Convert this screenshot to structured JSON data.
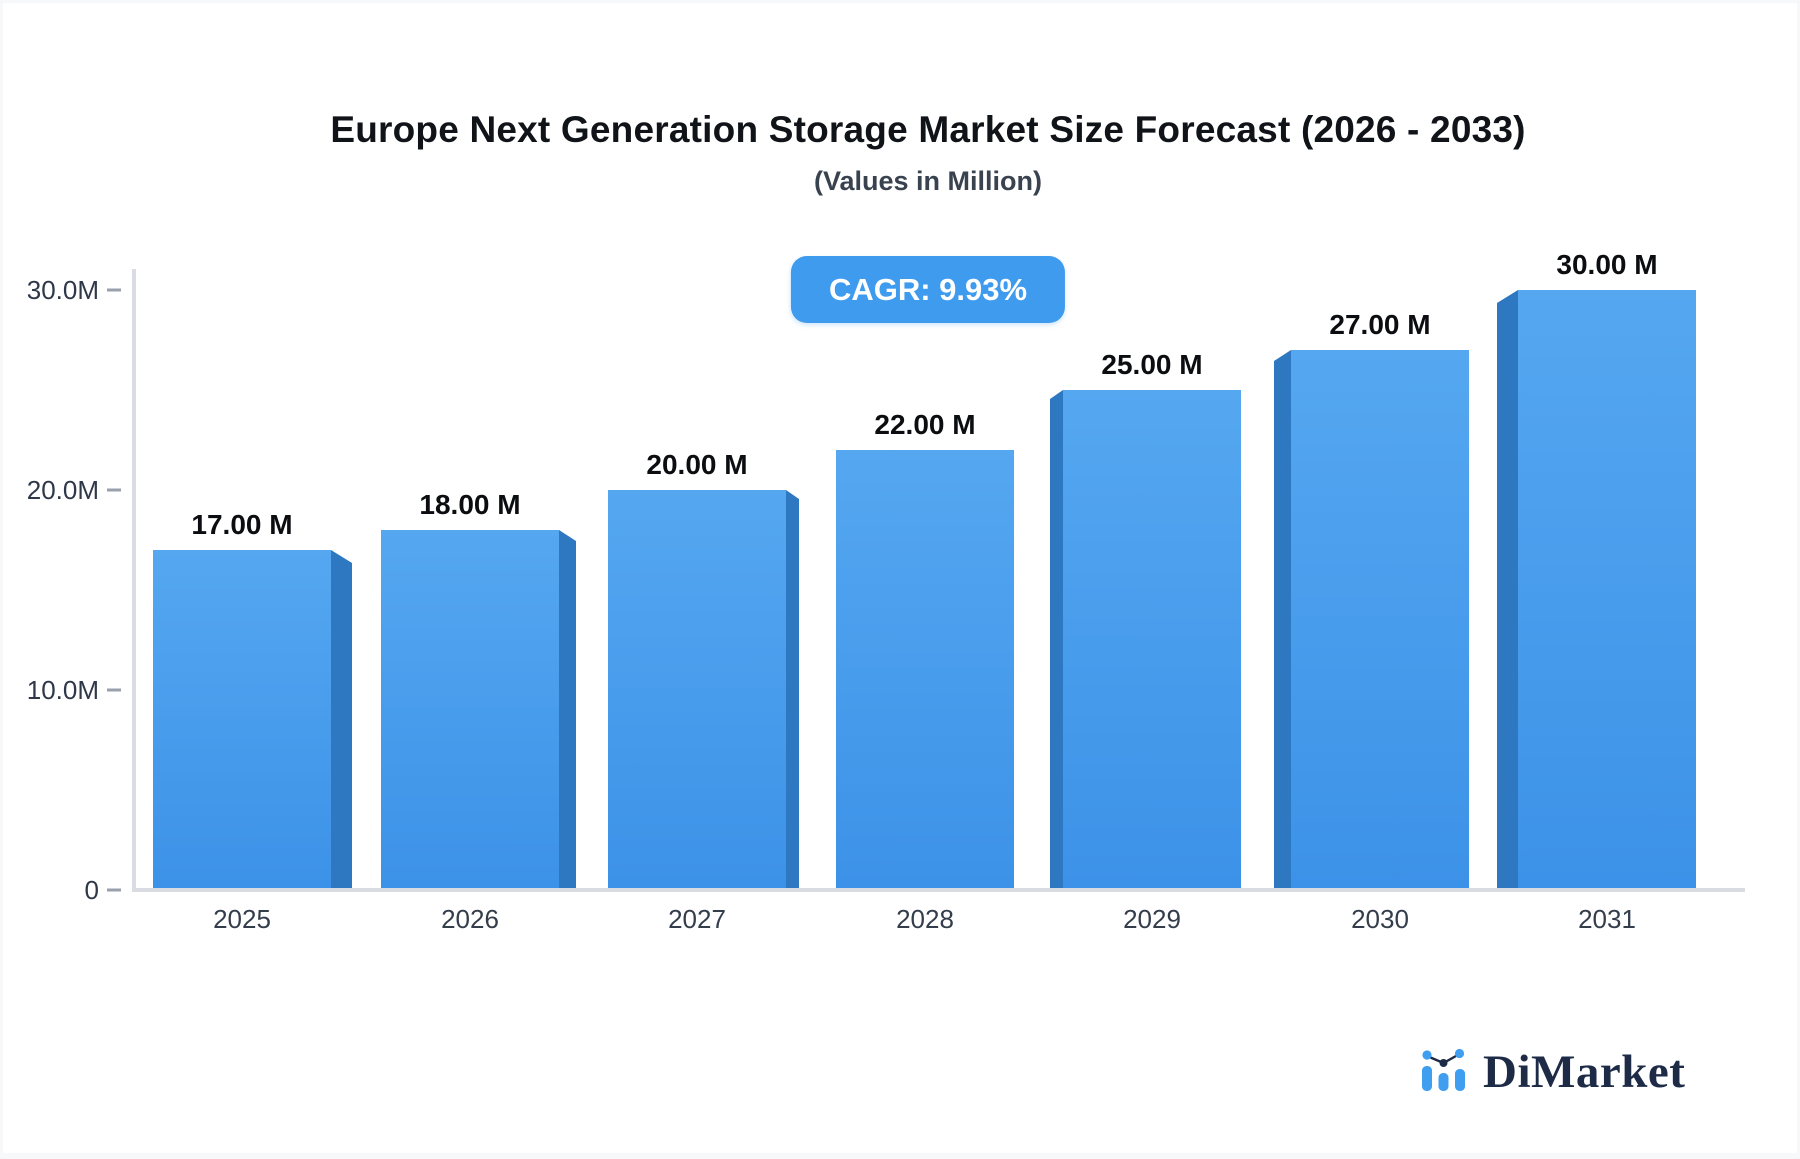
{
  "chart": {
    "title": "Europe Next Generation Storage Market Size Forecast (2026 - 2033)",
    "subtitle": "(Values in Million)",
    "cagr_label": "CAGR: 9.93%"
  },
  "y_axis": {
    "ticks": [
      {
        "label": "30.0M",
        "value": 30
      },
      {
        "label": "20.0M",
        "value": 20
      },
      {
        "label": "10.0M",
        "value": 10
      },
      {
        "label": "0",
        "value": 0
      }
    ]
  },
  "bars": [
    {
      "year": "2025",
      "value": 17,
      "label": "17.00 M"
    },
    {
      "year": "2026",
      "value": 18,
      "label": "18.00 M"
    },
    {
      "year": "2027",
      "value": 20,
      "label": "20.00 M"
    },
    {
      "year": "2028",
      "value": 22,
      "label": "22.00 M"
    },
    {
      "year": "2029",
      "value": 25,
      "label": "25.00 M"
    },
    {
      "year": "2030",
      "value": 27,
      "label": "27.00 M"
    },
    {
      "year": "2031",
      "value": 30,
      "label": "30.00 M"
    }
  ],
  "logo": {
    "text": "DiMarket"
  },
  "colors": {
    "bar_top": "#55a7f0",
    "bar_bottom": "#3c92e8",
    "bar_side": "#2d78c0",
    "badge": "#3e9bee",
    "axis_line": "#d9dde3",
    "tick_dash": "#99a0ac",
    "logo_blue": "#3f9ef0",
    "logo_navy": "#1e2b47"
  },
  "chart_data": {
    "type": "bar",
    "title": "Europe Next Generation Storage Market Size Forecast (2026 - 2033)",
    "subtitle": "(Values in Million)",
    "categories": [
      "2025",
      "2026",
      "2027",
      "2028",
      "2029",
      "2030",
      "2031"
    ],
    "values": [
      17,
      18,
      20,
      22,
      25,
      27,
      30
    ],
    "data_labels": [
      "17.00 M",
      "18.00 M",
      "20.00 M",
      "22.00 M",
      "25.00 M",
      "27.00 M",
      "30.00 M"
    ],
    "xlabel": "",
    "ylabel": "",
    "ylim": [
      0,
      30
    ],
    "y_tick_labels": [
      "0",
      "10.0M",
      "20.0M",
      "30.0M"
    ],
    "grid": false,
    "legend": false,
    "annotations": [
      "CAGR: 9.93%"
    ]
  }
}
